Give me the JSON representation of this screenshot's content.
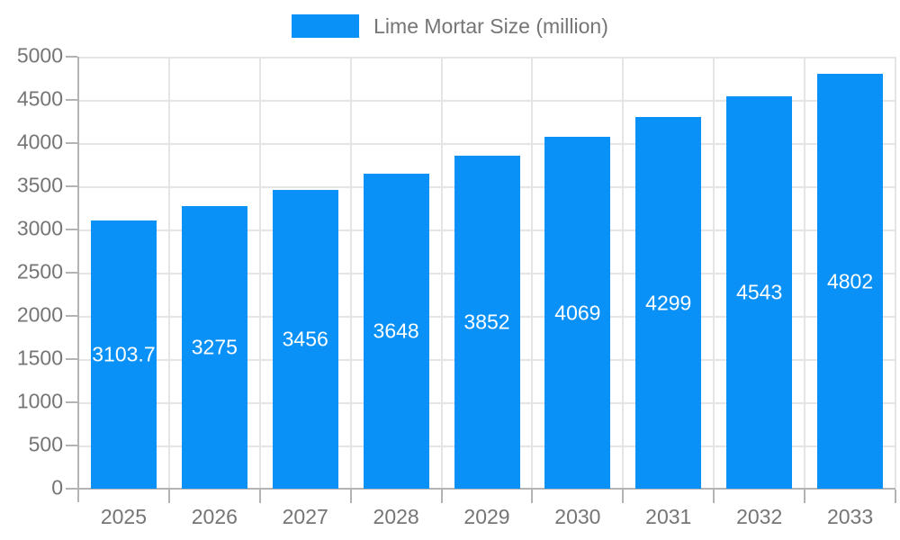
{
  "chart_data": {
    "type": "bar",
    "title": "Lime Mortar Size (million)",
    "legend": {
      "label": "Lime Mortar Size (million)",
      "position": "top"
    },
    "categories": [
      "2025",
      "2026",
      "2027",
      "2028",
      "2029",
      "2030",
      "2031",
      "2032",
      "2033"
    ],
    "series": [
      {
        "name": "Lime Mortar Size (million)",
        "values": [
          3103.7,
          3275,
          3456,
          3648,
          3852,
          4069,
          4299,
          4543,
          4802
        ],
        "value_labels": [
          "3103.7",
          "3275",
          "3456",
          "3648",
          "3852",
          "4069",
          "4299",
          "4543",
          "4802"
        ]
      }
    ],
    "xlabel": "",
    "ylabel": "",
    "ylim": [
      0,
      5000
    ],
    "ytick_step": 500,
    "ytick_labels": [
      "0",
      "500",
      "1000",
      "1500",
      "2000",
      "2500",
      "3000",
      "3500",
      "4000",
      "4500",
      "5000"
    ],
    "grid": true,
    "colors": {
      "bar": "#0991f8",
      "grid": "#e5e5e5",
      "axis": "#b3b3b3",
      "axis_text": "#757575",
      "legend_text": "#757575",
      "bar_label_text": "#ffffff",
      "background": "#ffffff"
    }
  }
}
